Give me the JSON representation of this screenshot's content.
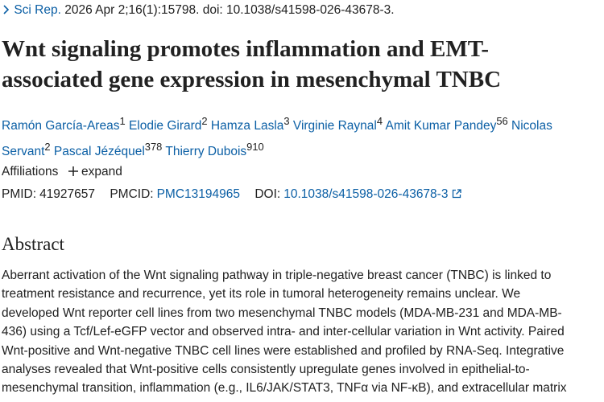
{
  "journal": {
    "name": "Sci Rep.",
    "citation": "2026 Apr 2;16(1):15798. doi: 10.1038/s41598-026-43678-3."
  },
  "title": {
    "lines": [
      "Wnt signaling promotes inflammation and EMT-",
      "associated gene expression in mesenchymal TNBC"
    ]
  },
  "authors": [
    {
      "name": "Ramón García-Areas",
      "affiliations": [
        "1"
      ]
    },
    {
      "name": "Elodie Girard",
      "affiliations": [
        "2"
      ]
    },
    {
      "name": "Hamza Lasla",
      "affiliations": [
        "3"
      ]
    },
    {
      "name": "Virginie Raynal",
      "affiliations": [
        "4"
      ]
    },
    {
      "name": "Amit Kumar Pandey",
      "affiliations": [
        "5",
        "6"
      ]
    },
    {
      "name": "Nicolas Servant",
      "affiliations": [
        "2"
      ]
    },
    {
      "name": "Pascal Jézéquel",
      "affiliations": [
        "3",
        "7",
        "8"
      ]
    },
    {
      "name": "Thierry Dubois",
      "affiliations": [
        "9",
        "10"
      ]
    }
  ],
  "affiliations": {
    "label": "Affiliations",
    "toggle": "expand"
  },
  "identifiers": {
    "pmid_label": "PMID:",
    "pmid": "41927657",
    "pmcid_label": "PMCID:",
    "pmcid": "PMC13194965",
    "doi_label": "DOI:",
    "doi": "10.1038/s41598-026-43678-3"
  },
  "abstract": {
    "heading": "Abstract",
    "lines": [
      "Aberrant activation of the Wnt signaling pathway in triple-negative breast cancer (TNBC) is linked to",
      "treatment resistance and recurrence, yet its role in tumoral heterogeneity remains unclear. We",
      "developed Wnt reporter cell lines from two mesenchymal TNBC models (MDA-MB-231 and MDA-MB-",
      "436) using a Tcf/Lef-eGFP vector and observed intra- and inter-cellular variation in Wnt activity. Paired",
      "Wnt-positive and Wnt-negative TNBC cell lines were established and profiled by RNA-Seq. Integrative",
      "analyses revealed that Wnt-positive cells consistently upregulate genes involved in epithelial-to-",
      "mesenchymal transition, inflammation (e.g., IL6/JAK/STAT3, TNFα via NF-κB), and extracellular matrix"
    ]
  }
}
